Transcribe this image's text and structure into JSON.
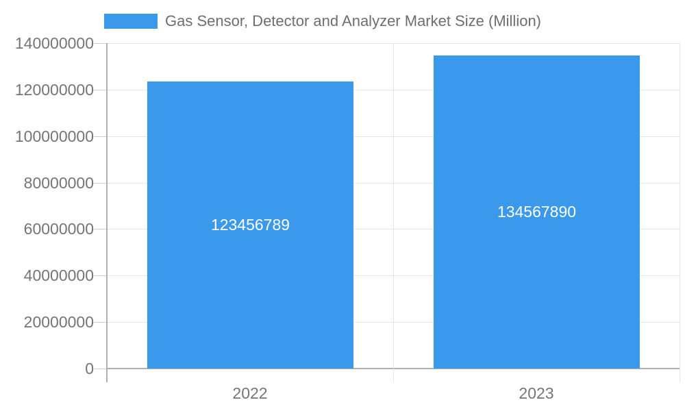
{
  "legend": {
    "items": [
      {
        "label": "Gas Sensor, Detector and Analyzer Market Size (Million)",
        "color": "#3b99ec"
      }
    ]
  },
  "chart_data": {
    "type": "bar",
    "title": "Gas Sensor, Detector and Analyzer Market Size (Million)",
    "categories": [
      "2022",
      "2023"
    ],
    "series": [
      {
        "name": "Gas Sensor, Detector and Analyzer Market Size (Million)",
        "values": [
          123456789,
          134567890
        ]
      }
    ],
    "bar_labels": [
      "123456789",
      "134567890"
    ],
    "xlabel": "",
    "ylabel": "",
    "ylim": [
      0,
      140000000
    ],
    "yticks": [
      0,
      20000000,
      40000000,
      60000000,
      80000000,
      100000000,
      120000000,
      140000000
    ],
    "grid": true,
    "legend_position": "top",
    "colors": {
      "bar": "#3b99ec",
      "bar_label": "#ffffff",
      "axis_text": "#757575",
      "legend_text": "#6e6e6e",
      "grid_line": "#e6e6e6",
      "axis_line": "#b0b0b0",
      "tick_line": "#cccccc"
    }
  }
}
